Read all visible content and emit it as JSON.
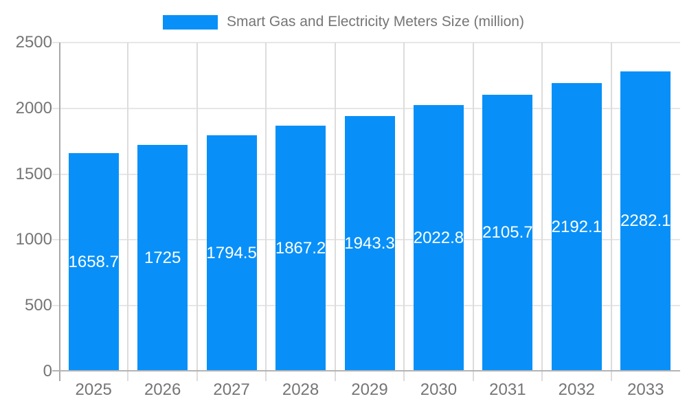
{
  "chart_data": {
    "type": "bar",
    "title": "Smart Gas and Electricity Meters Size (million)",
    "categories": [
      "2025",
      "2026",
      "2027",
      "2028",
      "2029",
      "2030",
      "2031",
      "2032",
      "2033"
    ],
    "values": [
      1658.7,
      1725,
      1794.5,
      1867.2,
      1943.3,
      2022.8,
      2105.7,
      2192.1,
      2282.1
    ],
    "value_labels": [
      "1658.7",
      "1725",
      "1794.5",
      "1867.2",
      "1943.3",
      "2022.8",
      "2105.7",
      "2192.1",
      "2282.1"
    ],
    "xlabel": "",
    "ylabel": "",
    "ylim": [
      0,
      2500
    ],
    "ytick_labels": [
      "0",
      "500",
      "1000",
      "1500",
      "2000",
      "2500"
    ],
    "grid": true,
    "legend_position": "top",
    "colors": {
      "bar": "#0890f8",
      "value_text": "#ffffff",
      "axis_text": "#757575",
      "hgrid": "#e6e6e6",
      "vgrid": "#dcdcdc",
      "y_axis_line": "#a8a8a8",
      "x_axis_line": "#b3b3b3",
      "background": "#ffffff"
    }
  }
}
